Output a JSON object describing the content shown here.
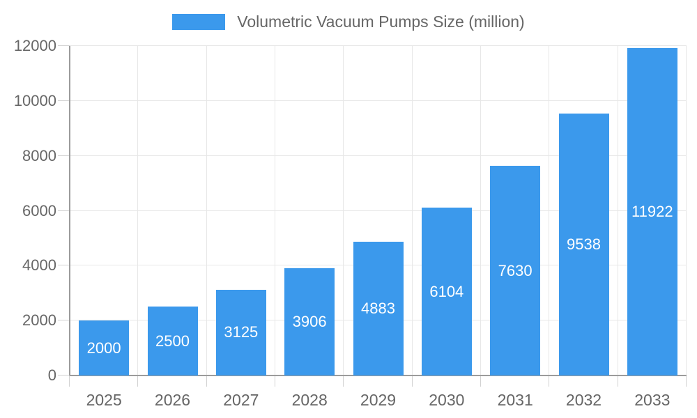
{
  "chart_data": {
    "type": "bar",
    "legend": "Volumetric Vacuum Pumps Size (million)",
    "categories": [
      "2025",
      "2026",
      "2027",
      "2028",
      "2029",
      "2030",
      "2031",
      "2032",
      "2033"
    ],
    "values": [
      2000,
      2500,
      3125,
      3906,
      4883,
      6104,
      7630,
      9538,
      11922
    ],
    "value_labels": [
      "2000",
      "2500",
      "3125",
      "3906",
      "4883",
      "6104",
      "7630",
      "9538",
      "11922"
    ],
    "yticks": [
      0,
      2000,
      4000,
      6000,
      8000,
      10000,
      12000
    ],
    "ytick_labels": [
      "0",
      "2000",
      "4000",
      "6000",
      "8000",
      "10000",
      "12000"
    ],
    "ylim": [
      0,
      12000
    ],
    "xlabel": "",
    "ylabel": "",
    "grid": "on",
    "legend_position": "top-center",
    "bar_label_position": "center-inside"
  },
  "colors": {
    "bar": "#3b99ec",
    "grid": "#e7e7e7",
    "axis": "#9b9b9b",
    "tick": "#d2d2d2",
    "text": "#666666",
    "bar_label": "#ffffff",
    "background": "#ffffff"
  }
}
